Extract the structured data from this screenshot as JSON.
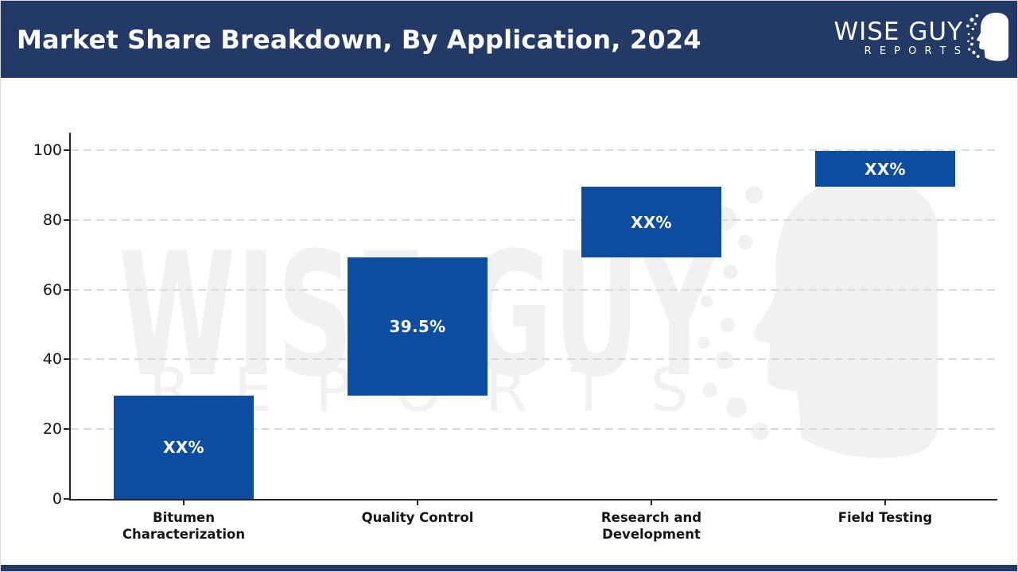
{
  "header": {
    "title": "Market Share Breakdown, By Application, 2024",
    "logo": {
      "wordmark": "WISE GUY",
      "subtext": "R E P O R T S"
    }
  },
  "watermark": {
    "wordmark": "WISE GUY",
    "subtext": "R E P O R T S"
  },
  "chart_data": {
    "type": "bar",
    "subtype": "waterfall (floating stacked segments, cumulative market share)",
    "title": "Market Share Breakdown, By Application, 2024",
    "categories": [
      "Bitumen Characterization",
      "Quality Control",
      "Research and Development",
      "Field Testing"
    ],
    "category_label_lines": [
      [
        "Bitumen",
        "Characterization"
      ],
      [
        "Quality Control"
      ],
      [
        "Research and",
        "Development"
      ],
      [
        "Field Testing"
      ]
    ],
    "segments": [
      {
        "category": "Bitumen Characterization",
        "start": 0,
        "end": 29.7,
        "value": 29.7,
        "label": "XX%"
      },
      {
        "category": "Quality Control",
        "start": 29.7,
        "end": 69.2,
        "value": 39.5,
        "label": "39.5%"
      },
      {
        "category": "Research and Development",
        "start": 69.2,
        "end": 89.4,
        "value": 20.2,
        "label": "XX%"
      },
      {
        "category": "Field Testing",
        "start": 89.4,
        "end": 99.8,
        "value": 10.4,
        "label": "XX%"
      }
    ],
    "yticks": [
      0,
      20,
      40,
      60,
      80,
      100
    ],
    "ylim": [
      0,
      105
    ],
    "xlabel": "",
    "ylabel": "",
    "grid": "horizontal-dashed",
    "legend": "none",
    "colors": {
      "bar": "#0d4da1",
      "bar_label": "#ffffff",
      "grid": "#dadada",
      "axis": "#262626",
      "header_bg": "#233a66",
      "title_text": "#ffffff",
      "watermark": "#f1f1f1"
    }
  }
}
